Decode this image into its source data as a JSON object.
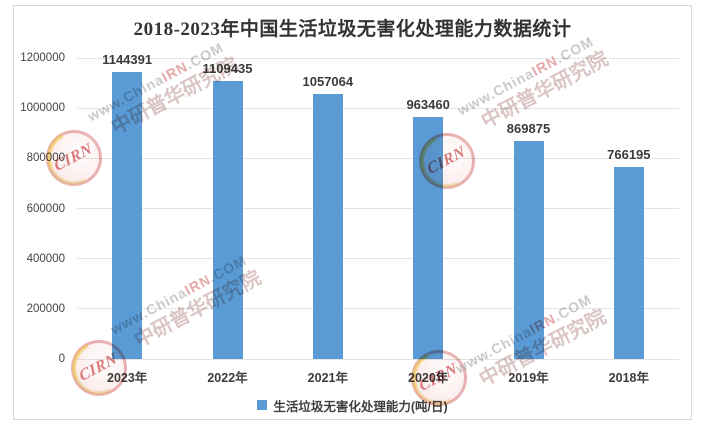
{
  "chart_data": {
    "type": "bar",
    "title": "2018-2023年中国生活垃圾无害化处理能力数据统计",
    "categories": [
      "2023年",
      "2022年",
      "2021年",
      "2020年",
      "2019年",
      "2018年"
    ],
    "series": [
      {
        "name": "生活垃圾无害化处理能力(吨/日)",
        "values": [
          1144391,
          1109435,
          1057064,
          963460,
          869875,
          766195
        ]
      }
    ],
    "ylim": [
      0,
      1200000
    ],
    "ytick_step": 200000,
    "yticks": [
      0,
      200000,
      400000,
      600000,
      800000,
      1000000,
      1200000
    ],
    "grid": true,
    "data_labels": true,
    "legend_position": "bottom",
    "bar_color": "#5B9BD5"
  },
  "watermark": {
    "url_prefix": "www.China",
    "url_mid": "IRN",
    "url_suffix": ".COM",
    "brand": "中研普华研究院",
    "logo_text": "CIRN"
  },
  "colors": {
    "bar_blue": "#5B9BD5",
    "gridline": "#E4E4E4",
    "frame_border": "#D9D9D9",
    "title_text": "#333333",
    "axis_text": "#404040",
    "watermark_gray": "#9E9E9E",
    "watermark_red": "#D46E6E"
  }
}
